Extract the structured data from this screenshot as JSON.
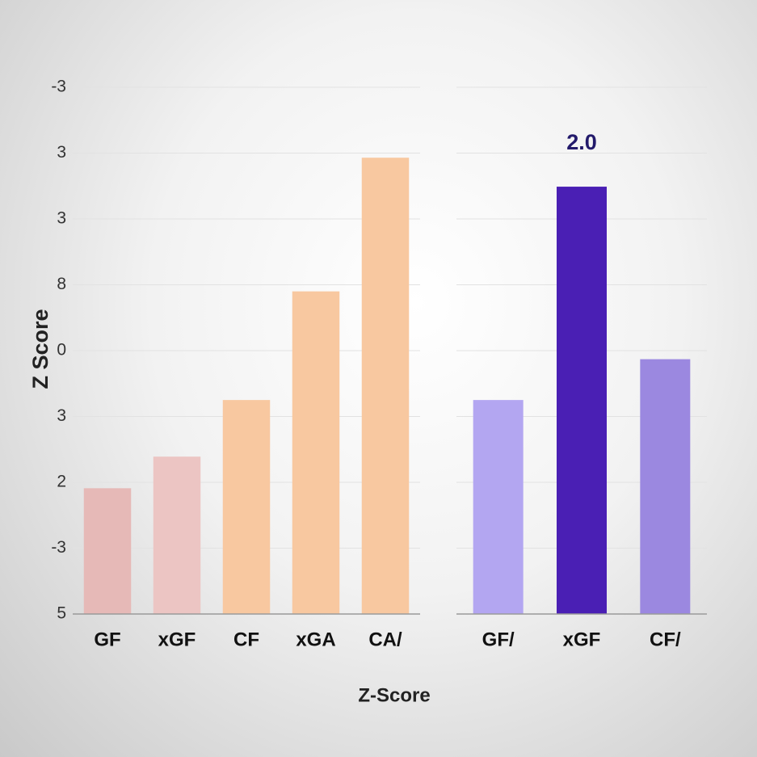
{
  "chart_data": [
    {
      "type": "bar",
      "ylabel": "Z Score",
      "xlabel": "Z-Score",
      "categories": [
        "GF",
        "xGF",
        "CF",
        "xGA",
        "CA/"
      ],
      "values": [
        1.91,
        2.39,
        3.25,
        4.9,
        6.93
      ],
      "colors": [
        "#e6b9b7",
        "#ecc5c3",
        "#f8c8a0",
        "#f8c8a0",
        "#f8c8a0"
      ],
      "ylim": [
        0,
        8
      ],
      "yticks": [
        {
          "value": 0,
          "label": "5"
        },
        {
          "value": 1,
          "label": "-3"
        },
        {
          "value": 2,
          "label": "2"
        },
        {
          "value": 3,
          "label": "3"
        },
        {
          "value": 4,
          "label": "0"
        },
        {
          "value": 5,
          "label": "8"
        },
        {
          "value": 6,
          "label": "3"
        },
        {
          "value": 7,
          "label": "3"
        },
        {
          "value": 8,
          "label": "-3"
        }
      ],
      "grid": true
    },
    {
      "type": "bar",
      "annotation": "2.0",
      "categories": [
        "GF/",
        "xGF",
        "CF/"
      ],
      "values": [
        3.25,
        6.49,
        3.87
      ],
      "colors": [
        "#b3a6f1",
        "#4a1fb4",
        "#9b88e0"
      ],
      "ylim": [
        0,
        8
      ],
      "grid": true
    }
  ]
}
